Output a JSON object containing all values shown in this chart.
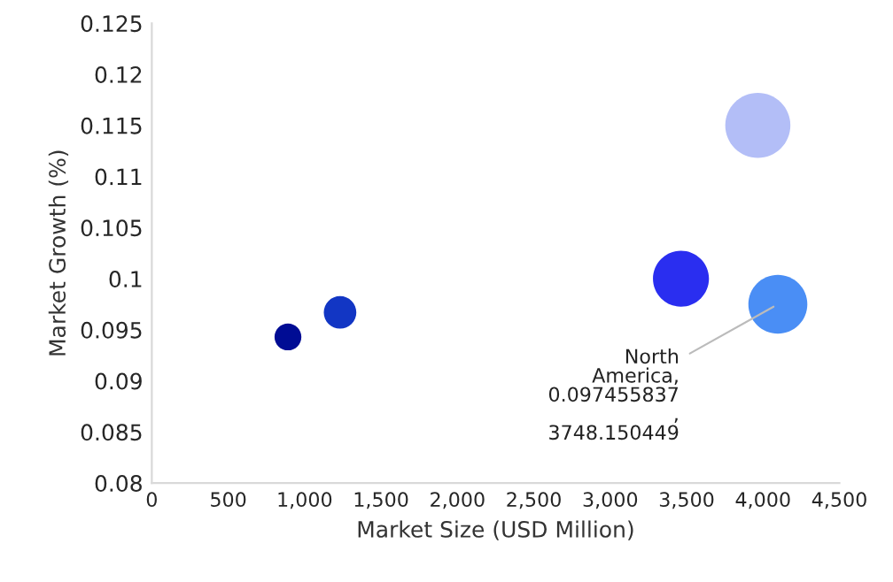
{
  "chart_data": {
    "type": "bubble",
    "xlabel": "Market Size (USD Million)",
    "ylabel": "Market Growth (%)",
    "x": [
      891,
      1232,
      3463,
      4097,
      3966
    ],
    "values": [
      0.0943,
      0.0967,
      0.1,
      0.0975,
      0.115
    ],
    "sizes": [
      0.17,
      0.25,
      0.74,
      0.82,
      1
    ],
    "colors": [
      "#000c94",
      "#1236c4",
      "#2a2ef0",
      "#4a8ef5",
      "#b3bef7"
    ],
    "xlim": [
      0,
      4500
    ],
    "xticks": [
      {
        "value": 0,
        "label": "0"
      },
      {
        "value": 500,
        "label": "500"
      },
      {
        "value": 1000,
        "label": "1,000"
      },
      {
        "value": 1500,
        "label": "1,500"
      },
      {
        "value": 2000,
        "label": "2,000"
      },
      {
        "value": 2500,
        "label": "2,500"
      },
      {
        "value": 3000,
        "label": "3,000"
      },
      {
        "value": 3500,
        "label": "3,500"
      },
      {
        "value": 4000,
        "label": "4,000"
      },
      {
        "value": 4500,
        "label": "4,500"
      }
    ],
    "ylim": [
      0.08,
      0.125
    ],
    "yticks": [
      0.08,
      0.085,
      0.09,
      0.095,
      0.1,
      0.105,
      0.11,
      0.115,
      0.12,
      0.125
    ],
    "grid": false,
    "legend": false,
    "annotations": [
      {
        "text": "North\nAmerica,\n0.097455837\n,\n3748.150449",
        "x": 4097,
        "y": 0.0975
      }
    ]
  }
}
